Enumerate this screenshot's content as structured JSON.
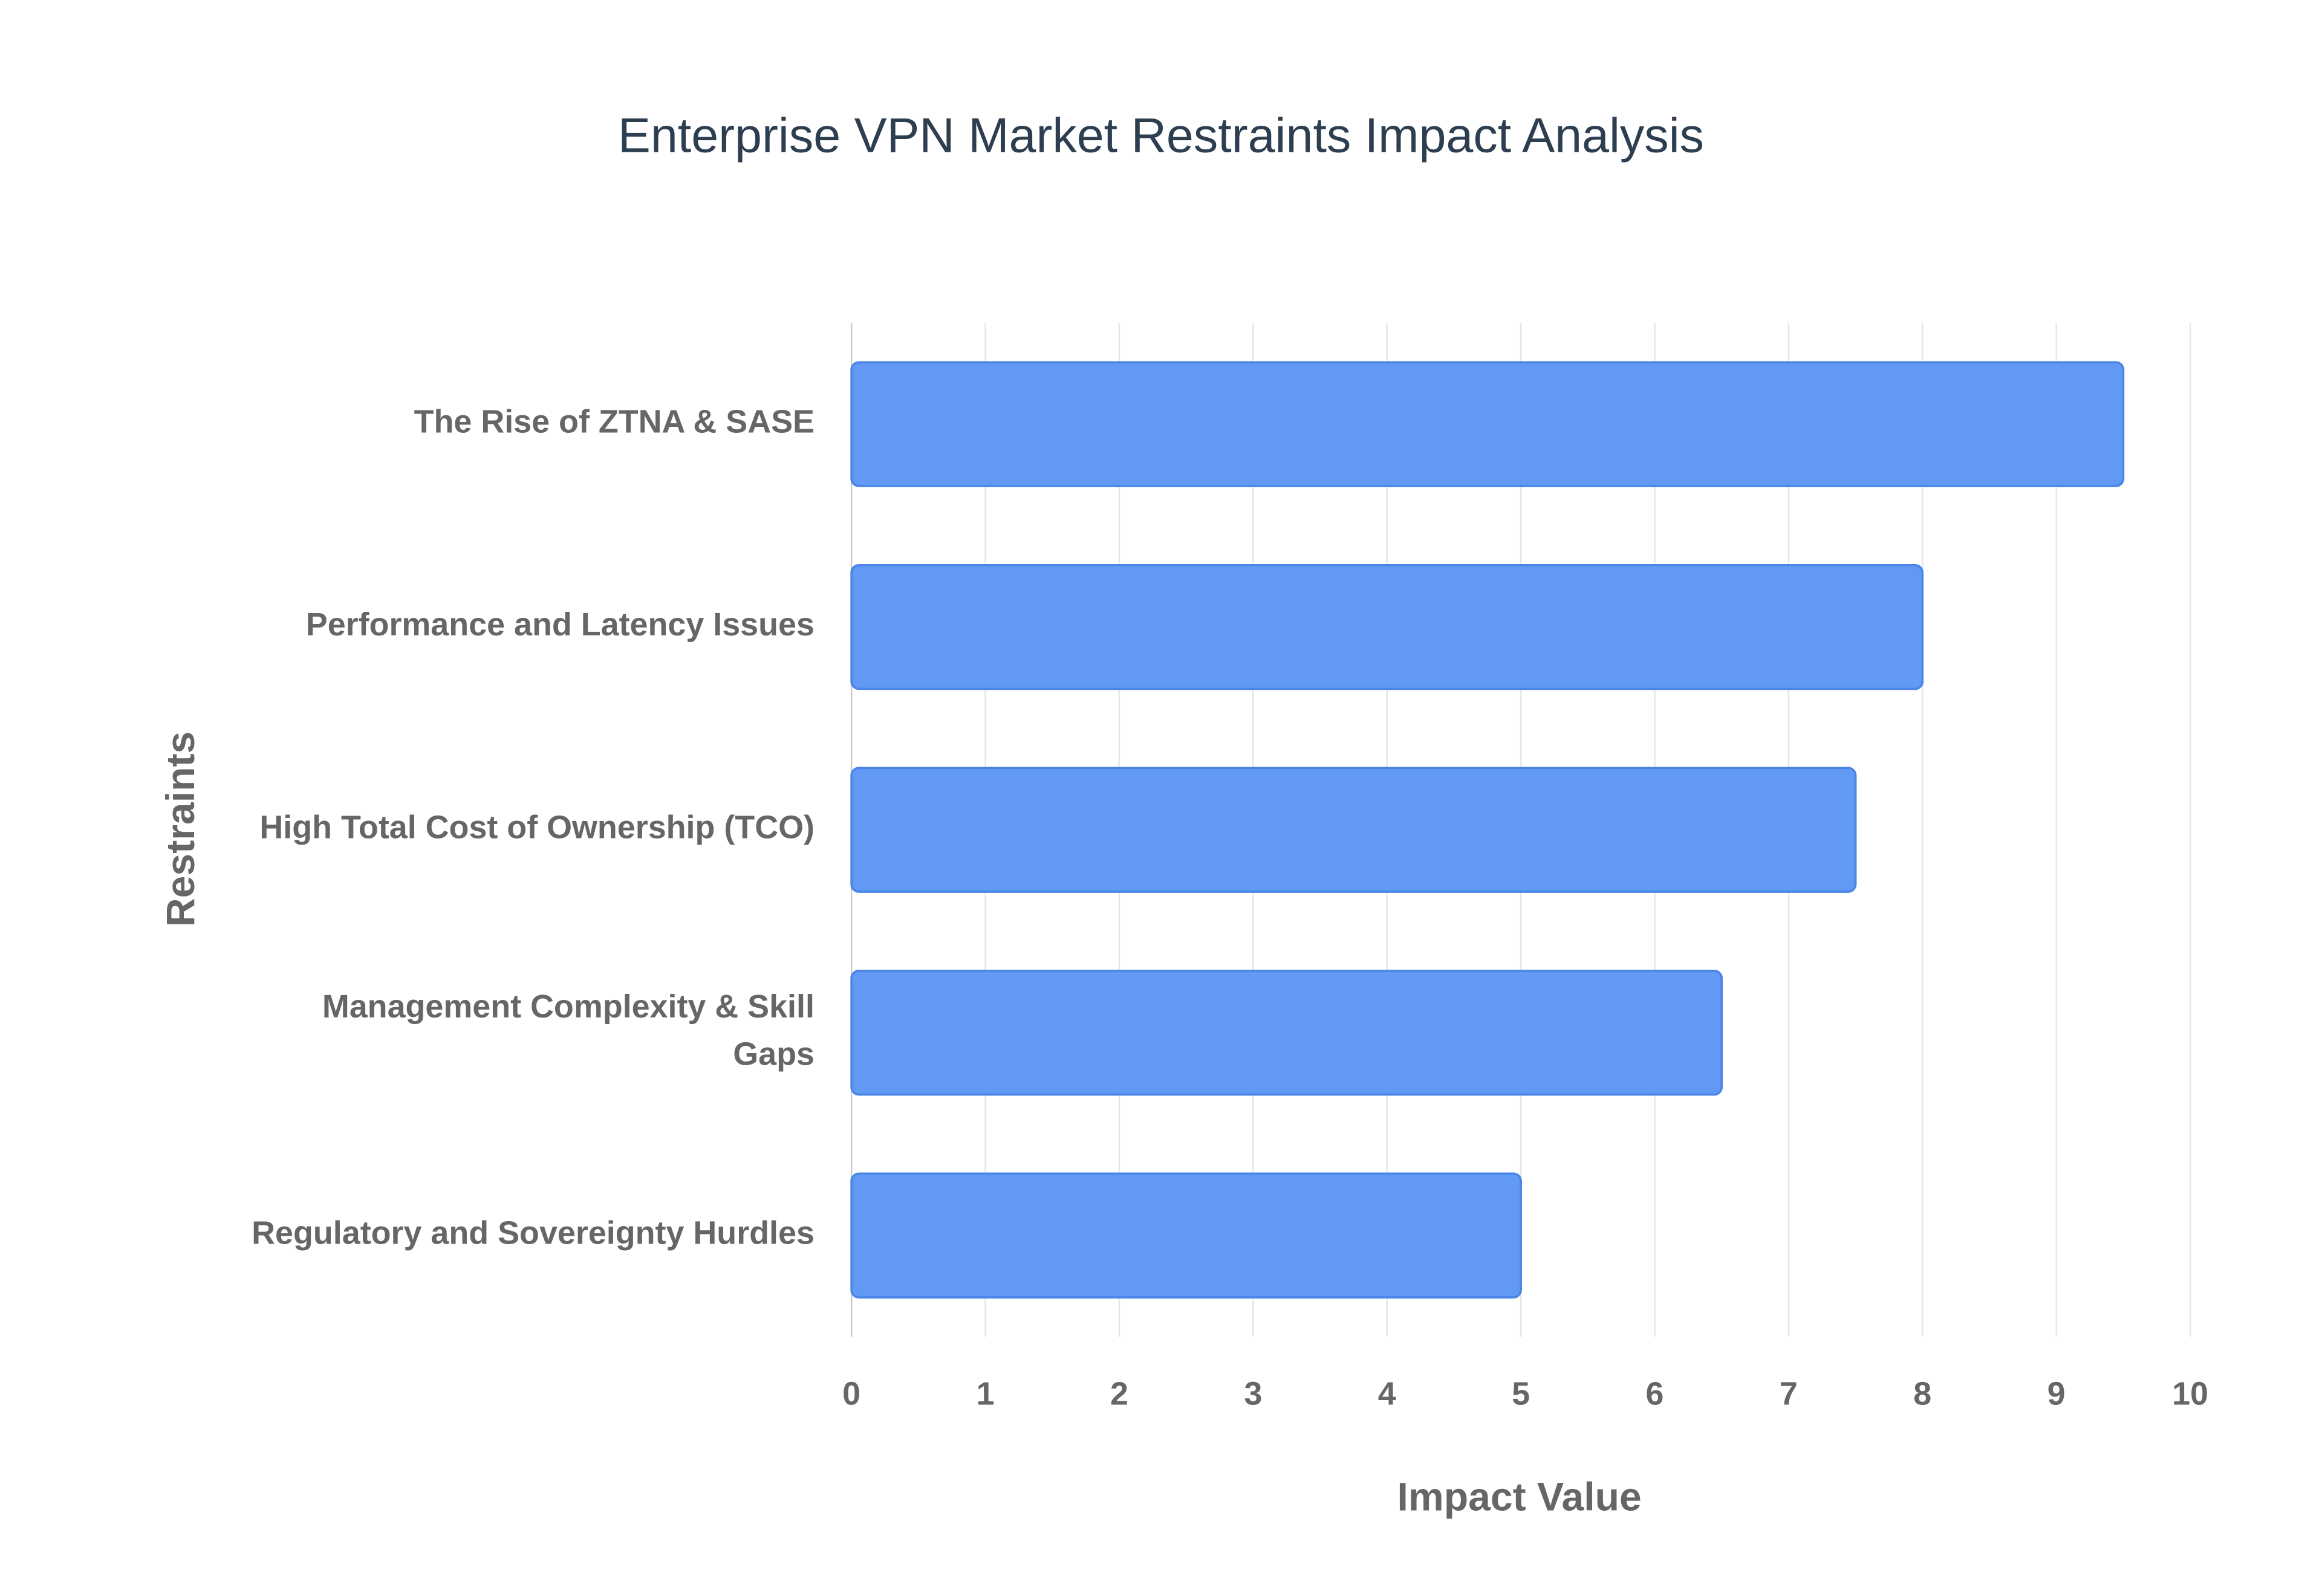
{
  "chart_data": {
    "type": "bar",
    "orientation": "horizontal",
    "title": "Enterprise VPN Market Restraints Impact Analysis",
    "x_label": "Impact Value",
    "y_label": "Restraints",
    "categories": [
      "The Rise of ZTNA & SASE",
      "Performance and Latency Issues",
      "High Total Cost of Ownership (TCO)",
      "Management Complexity & Skill Gaps",
      "Regulatory and Sovereignty Hurdles"
    ],
    "values": [
      9.5,
      8,
      7.5,
      6.5,
      5
    ],
    "color": "#6199f5",
    "xlim": [
      0,
      10
    ],
    "xticks": [
      0,
      1,
      2,
      3,
      4,
      5,
      6,
      7,
      8,
      9,
      10
    ],
    "grid": true
  }
}
